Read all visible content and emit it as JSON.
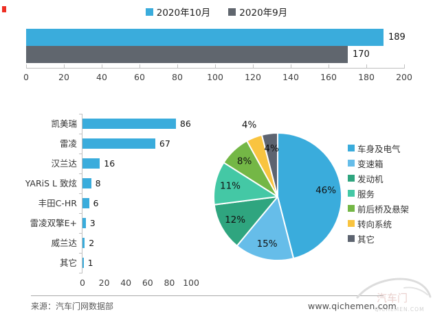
{
  "page": {
    "background": "#ffffff"
  },
  "marker": {
    "color": "#ee2f24"
  },
  "chart_data": [
    {
      "id": "monthly-total-comparison",
      "type": "bar",
      "orientation": "horizontal",
      "series": [
        {
          "name": "2020年10月",
          "value": 189,
          "color": "#3aacdc"
        },
        {
          "name": "2020年9月",
          "value": 170,
          "color": "#60666e"
        }
      ],
      "xlim": [
        0,
        200
      ],
      "xticks": [
        0,
        20,
        40,
        60,
        80,
        100,
        120,
        140,
        160,
        180,
        200
      ],
      "value_labels": true,
      "legend_position": "top-center",
      "grid": false
    },
    {
      "id": "complaints-by-model",
      "type": "bar",
      "orientation": "horizontal",
      "categories": [
        "凯美瑞",
        "雷凌",
        "汉兰达",
        "YARiS L 致炫",
        "丰田C-HR",
        "雷凌双擎E+",
        "威兰达",
        "其它"
      ],
      "values": [
        86,
        67,
        16,
        8,
        6,
        3,
        2,
        1
      ],
      "bar_color": "#3aacdc",
      "xlim": [
        0,
        100
      ],
      "xticks": [
        0,
        20,
        40,
        60,
        80,
        100
      ],
      "value_labels": true,
      "grid": false
    },
    {
      "id": "complaints-by-fault-type",
      "type": "pie",
      "slices": [
        {
          "label": "车身及电气",
          "pct": 46,
          "color": "#3aacdc",
          "label_placement": "inside"
        },
        {
          "label": "变速箱",
          "pct": 15,
          "color": "#66bde9",
          "label_placement": "inside"
        },
        {
          "label": "发动机",
          "pct": 12,
          "color": "#2fa57f",
          "label_placement": "inside"
        },
        {
          "label": "服务",
          "pct": 11,
          "color": "#44c8a5",
          "label_placement": "inside"
        },
        {
          "label": "前后桥及悬架",
          "pct": 8,
          "color": "#74b746",
          "label_placement": "inside"
        },
        {
          "label": "转向系统",
          "pct": 4,
          "color": "#f9c440",
          "label_placement": "outside"
        },
        {
          "label": "其它",
          "pct": 4,
          "color": "#5d6470",
          "label_placement": "inside"
        }
      ],
      "start_angle_deg": 0,
      "direction": "clockwise",
      "legend_position": "right"
    }
  ],
  "footer": {
    "source": "来源：汽车门网数据部",
    "website": "www.qichemen.com"
  },
  "watermark": {
    "brand": "汽车门",
    "domain": "QICHEMEN.COM"
  }
}
